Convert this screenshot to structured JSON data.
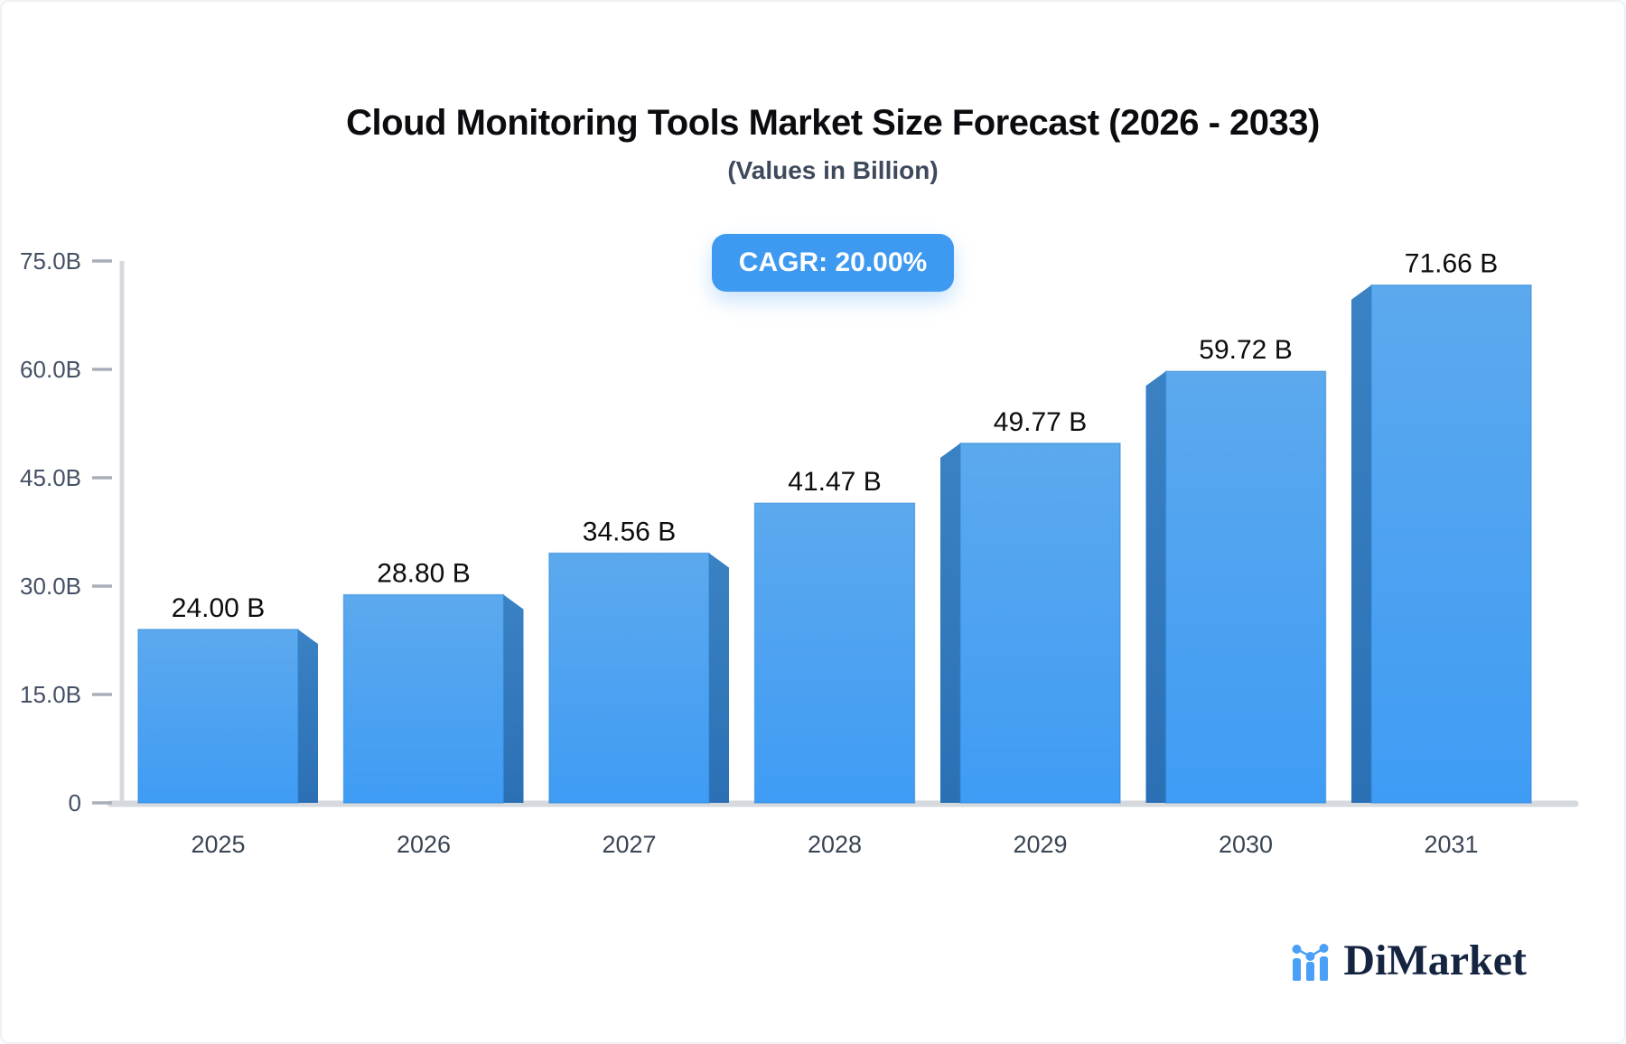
{
  "header": {
    "title": "Cloud Monitoring Tools Market Size Forecast (2026 - 2033)",
    "subtitle": "(Values in Billion)",
    "cagr_label": "CAGR: 20.00%"
  },
  "chart_data": {
    "type": "bar",
    "title": "Cloud Monitoring Tools Market Size Forecast (2026 - 2033)",
    "subtitle": "(Values in Billion)",
    "cagr_badge": "CAGR: 20.00%",
    "categories": [
      "2025",
      "2026",
      "2027",
      "2028",
      "2029",
      "2030",
      "2031"
    ],
    "values": [
      24.0,
      28.8,
      34.56,
      41.47,
      49.77,
      59.72,
      71.66
    ],
    "value_labels": [
      "24.00 B",
      "28.80 B",
      "34.56 B",
      "41.47 B",
      "49.77 B",
      "59.72 B",
      "71.66 B"
    ],
    "ylim": [
      0,
      75
    ],
    "ytick_values": [
      0,
      15,
      30,
      45,
      60,
      75
    ],
    "ytick_labels": [
      "0",
      "15.0B",
      "30.0B",
      "45.0B",
      "60.0B",
      "75.0B"
    ],
    "grid": false,
    "legend": false,
    "bar_style": "3d-perspective, side faces angle toward center bar"
  },
  "footer": {
    "brand": "DiMarket"
  },
  "colors": {
    "bar_face_top": "#5ca9ee",
    "bar_face_bottom": "#3f9cf4",
    "bar_face_edge": "#2e85d6",
    "bar_side_top": "#3a82c4",
    "bar_side_bottom": "#2b70b4",
    "accent": "#3d9af0",
    "axis": "#d6dade",
    "tick_mark": "#a8afb9",
    "tick_text": "#445064",
    "year_text": "#3a4554",
    "value_text": "#0c0d0f",
    "brand_blue": "#4aa0f7",
    "brand_navy": "#152440"
  }
}
